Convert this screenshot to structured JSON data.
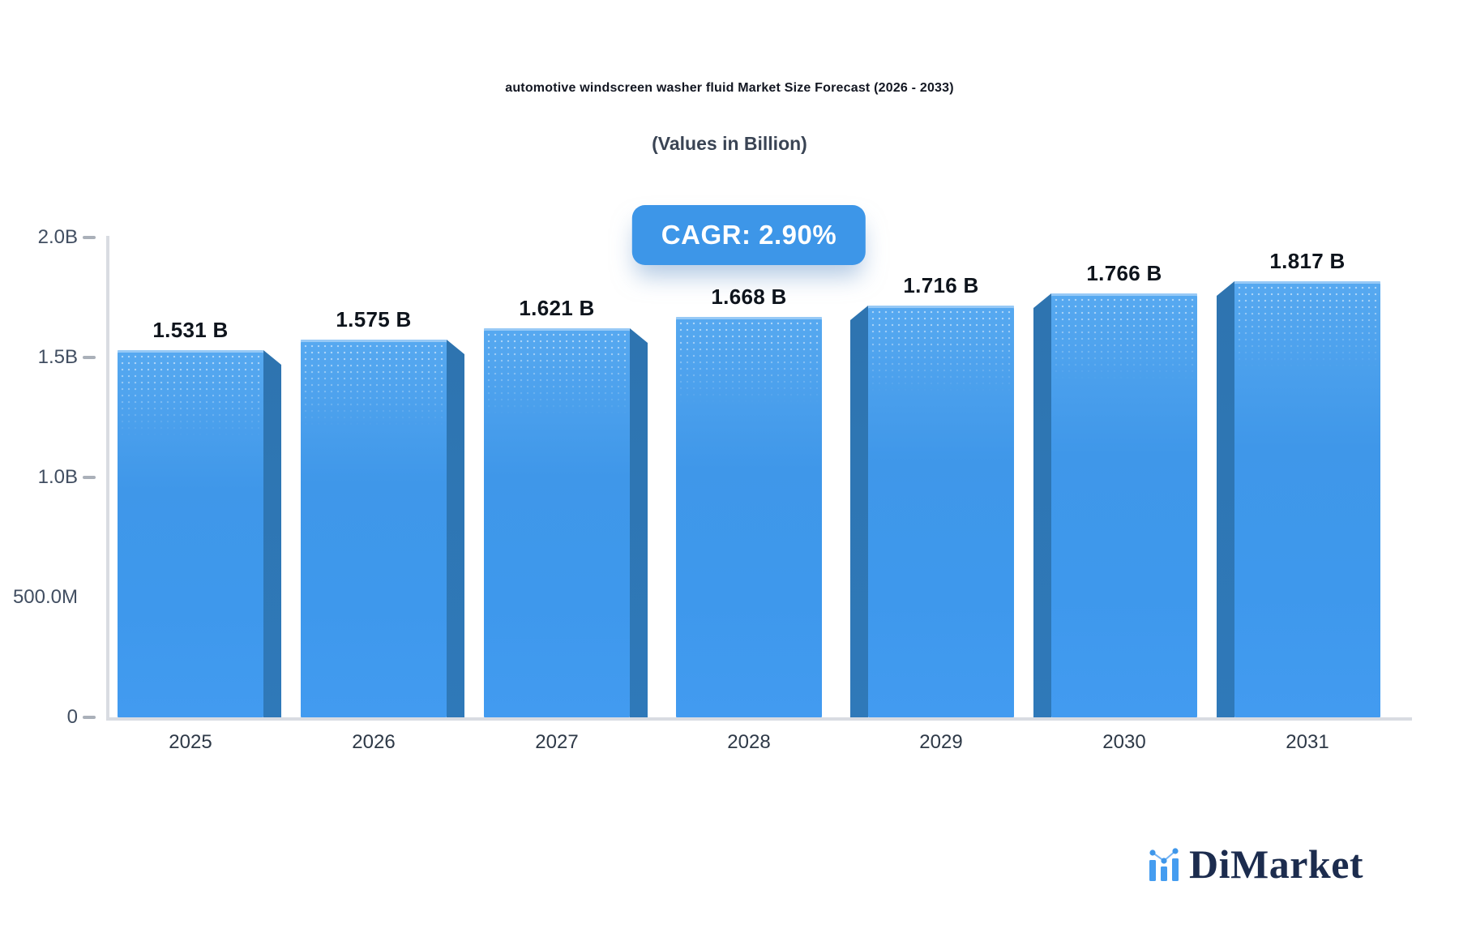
{
  "chart_data": {
    "type": "bar",
    "title": "automotive windscreen washer fluid Market Size Forecast (2026 - 2033)",
    "subtitle": "(Values in Billion)",
    "annotation": "CAGR: 2.90%",
    "categories": [
      "2025",
      "2026",
      "2027",
      "2028",
      "2029",
      "2030",
      "2031"
    ],
    "values": [
      1.531,
      1.575,
      1.621,
      1.668,
      1.716,
      1.766,
      1.817
    ],
    "value_labels": [
      "1.531 B",
      "1.575 B",
      "1.621 B",
      "1.668 B",
      "1.716 B",
      "1.766 B",
      "1.817 B"
    ],
    "xlabel": "",
    "ylabel": "",
    "ylim": [
      0,
      2.0
    ],
    "y_ticks": [
      {
        "label": "2.0B",
        "value": 2.0,
        "dash": true
      },
      {
        "label": "1.5B",
        "value": 1.5,
        "dash": true
      },
      {
        "label": "1.0B",
        "value": 1.0,
        "dash": true
      },
      {
        "label": "500.0M",
        "value": 0.5,
        "dash": false
      },
      {
        "label": "0",
        "value": 0.0,
        "dash": true
      }
    ],
    "grid": false,
    "legend": "none",
    "style": "3d-perspective-bars"
  },
  "branding": {
    "logo_text": "DiMarket",
    "logo_icon": "bar-chart-logo-icon"
  },
  "colors": {
    "background": "#ffffff",
    "bar_front": "#429ae9",
    "bar_front_light": "#57a9f0",
    "bar_side": "#2e74b0",
    "badge_bg": "#3d96e8",
    "badge_text": "#ffffff",
    "axis_line": "#d9dce2",
    "tick_dash": "#aab0b9",
    "title_text": "#131722",
    "logo_navy": "#1c2c4e"
  }
}
